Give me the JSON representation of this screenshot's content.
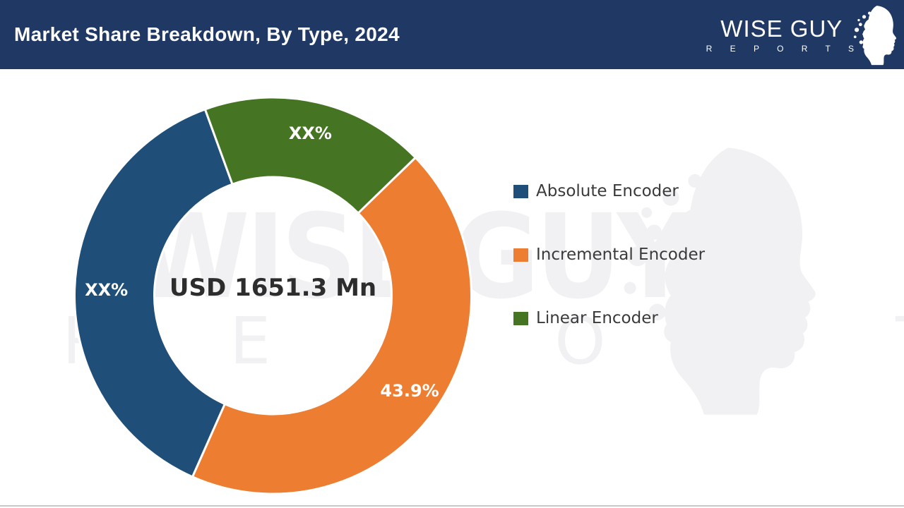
{
  "header": {
    "title": "Market Share Breakdown, By Type, 2024",
    "bg_color": "#1f3864",
    "logo": {
      "line1": "WISE GUY",
      "line2": "R E P O R T S"
    }
  },
  "watermark": {
    "line1": "WISE GUY",
    "line2": "R E P O R T S"
  },
  "chart_data": {
    "type": "pie",
    "subtype": "donut",
    "center_label": "USD 1651.3 Mn",
    "donut_hole_ratio": 0.6,
    "start_angle_deg": 110,
    "direction": "counterclockwise",
    "legend_position": "right",
    "slices": [
      {
        "label": "Absolute Encoder",
        "display_label": "XX%",
        "value_pct_est": 37.8,
        "color": "#1f4e78"
      },
      {
        "label": "Incremental Encoder",
        "display_label": "43.9%",
        "value_pct_est": 43.9,
        "color": "#ed7d31"
      },
      {
        "label": "Linear Encoder",
        "display_label": "XX%",
        "value_pct_est": 18.3,
        "color": "#457423"
      }
    ]
  }
}
